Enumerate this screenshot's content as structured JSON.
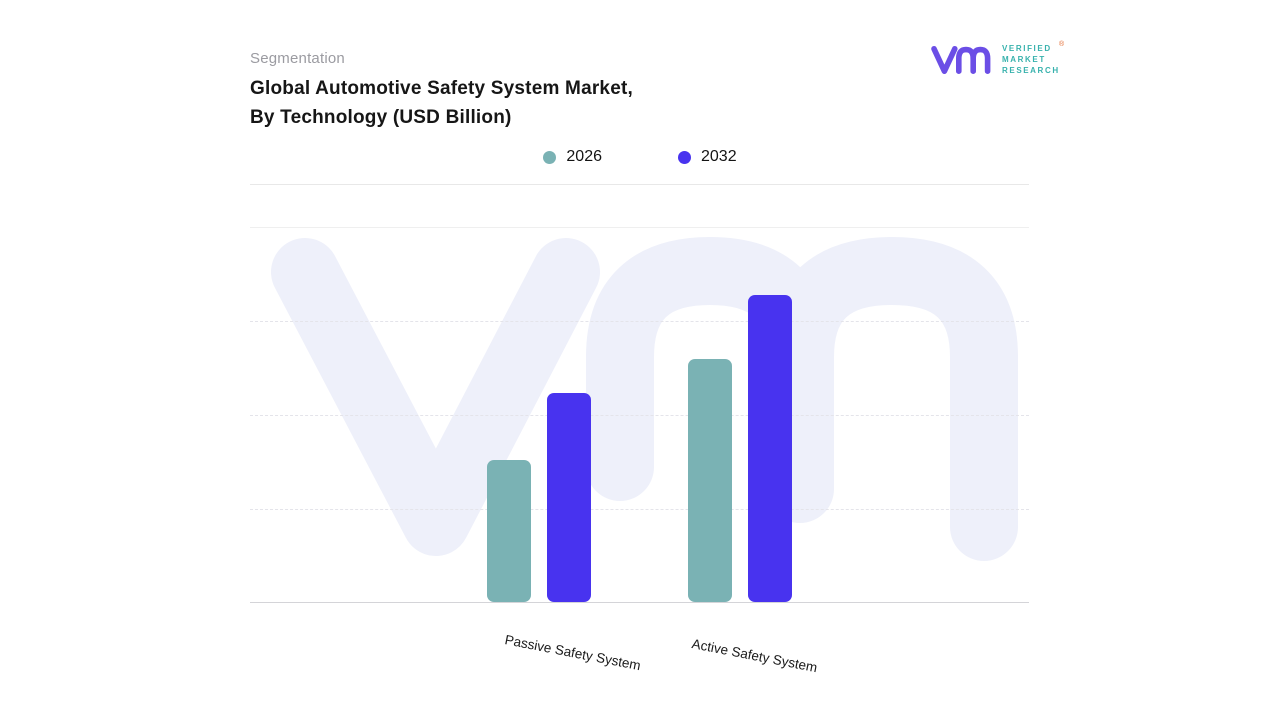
{
  "header": {
    "eyebrow": "Segmentation",
    "title_line1": "Global Automotive Safety System Market,",
    "title_line2": "By Technology (USD Billion)"
  },
  "brand": {
    "name_lines": [
      "VERIFIED",
      "MARKET",
      "RESEARCH"
    ],
    "registered_symbol": "®",
    "mark_color": "#6b4ee6",
    "text_color": "#38b2ad"
  },
  "chart_data": {
    "type": "bar",
    "title": "Global Automotive Safety System Market, By Technology (USD Billion)",
    "categories": [
      "Passive Safety System",
      "Active Safety System"
    ],
    "series": [
      {
        "name": "2026",
        "color": "#7ab2b4",
        "values": [
          38,
          65
        ]
      },
      {
        "name": "2032",
        "color": "#4833ef",
        "values": [
          56,
          82
        ]
      }
    ],
    "ylim": [
      0,
      100
    ],
    "xlabel": "",
    "ylabel": "",
    "value_axis_labels_visible": false,
    "grid": "horizontal-dashed",
    "legend_position": "top-center",
    "watermark": "VMR"
  }
}
